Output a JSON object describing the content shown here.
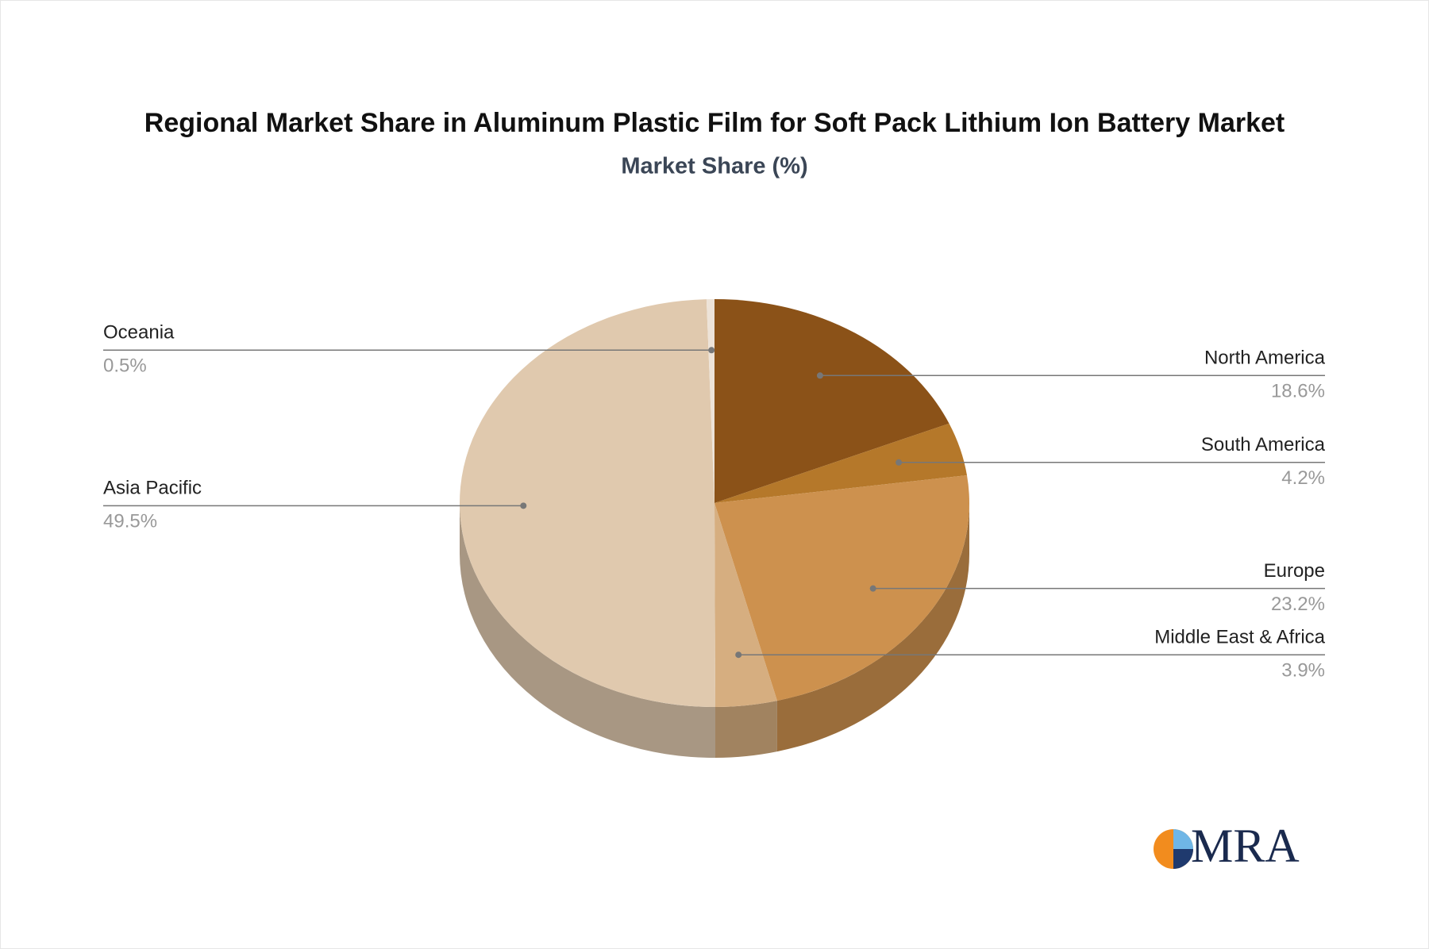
{
  "chart_data": {
    "type": "pie",
    "title": "Regional Market Share in Aluminum Plastic Film for Soft Pack Lithium Ion Battery Market",
    "subtitle": "Market Share (%)",
    "categories": [
      "North America",
      "South America",
      "Europe",
      "Middle East & Africa",
      "Asia Pacific",
      "Oceania"
    ],
    "values": [
      18.6,
      4.2,
      23.2,
      3.9,
      49.5,
      0.5
    ],
    "value_labels": [
      "18.6%",
      "4.2%",
      "23.2%",
      "3.9%",
      "49.5%",
      "0.5%"
    ],
    "colors": [
      "#8b5218",
      "#b5782a",
      "#cd914e",
      "#d6ae80",
      "#e0c9ae",
      "#ede3d8"
    ]
  },
  "logo": "MRA"
}
